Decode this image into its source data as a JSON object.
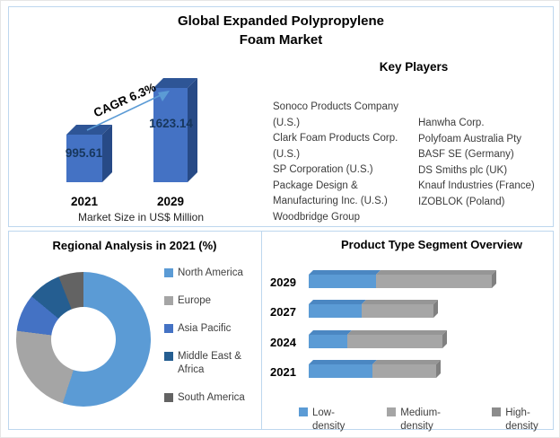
{
  "poster": {
    "title_line1": "Global Expanded Polypropylene",
    "title_line2": "Foam Market"
  },
  "market_chart": {
    "cagr_label": "CAGR 6.3%",
    "caption": "Market Size in US$ Million",
    "bars": [
      {
        "year": "2021",
        "value": "995.61"
      },
      {
        "year": "2029",
        "value": "1623.14"
      }
    ],
    "bar_color": "#4472C4",
    "arrow_color": "#5B9BD5"
  },
  "key_players": {
    "heading": "Key Players",
    "column_left": [
      "Sonoco Products Company (U.S.)",
      "Clark Foam Products Corp. (U.S.)",
      "SP Corporation (U.S.)",
      "Package Design & Manufacturing Inc. (U.S.)",
      "Woodbridge Group"
    ],
    "column_right": [
      "Hanwha Corp.",
      "Polyfoam Australia Pty",
      "BASF SE (Germany)",
      "DS Smiths plc (UK)",
      "Knauf Industries (France)",
      "IZOBLOK (Poland)"
    ]
  },
  "regional": {
    "title": "Regional Analysis in 2021 (%)",
    "legend": [
      {
        "label": "North America",
        "color": "#5B9BD5"
      },
      {
        "label": "Europe",
        "color": "#A5A5A5"
      },
      {
        "label": "Asia Pacific",
        "color": "#4472C4"
      },
      {
        "label": "Middle East & Africa",
        "color": "#255E91"
      },
      {
        "label": "South America",
        "color": "#636363"
      }
    ]
  },
  "product": {
    "title": "Product Type Segment Overview",
    "legend": [
      {
        "label": "Low-density",
        "color": "#5B9BD5"
      },
      {
        "label": "Medium-density",
        "color": "#A5A5A5"
      },
      {
        "label": "High-density",
        "color": "#8C8C8C"
      }
    ]
  },
  "chart_data": [
    {
      "type": "bar",
      "title": "Market Size in US$ Million",
      "categories": [
        "2021",
        "2029"
      ],
      "values": [
        995.61,
        1623.14
      ],
      "annotation": "CAGR 6.3%",
      "xlabel": "",
      "ylabel": "US$ Million",
      "legend_position": "none"
    },
    {
      "type": "pie",
      "title": "Regional Analysis in 2021 (%)",
      "labels": [
        "North America",
        "Europe",
        "Asia Pacific",
        "Middle East & Africa",
        "South America"
      ],
      "values": [
        55,
        22,
        9,
        8,
        6
      ],
      "colors": [
        "#5B9BD5",
        "#A5A5A5",
        "#4472C4",
        "#255E91",
        "#636363"
      ],
      "donut_hole": 0.48,
      "legend_position": "right",
      "note": "percentages estimated from slice angles; no data labels shown"
    },
    {
      "type": "bar",
      "orientation": "horizontal-stacked",
      "title": "Product Type Segment Overview",
      "categories": [
        "2029",
        "2027",
        "2024",
        "2021"
      ],
      "series": [
        {
          "name": "Low-density",
          "color": "#5B9BD5",
          "values": [
            37,
            29,
            21,
            35
          ]
        },
        {
          "name": "Medium-density",
          "color": "#A5A5A5",
          "values": [
            63,
            39,
            52,
            35
          ]
        },
        {
          "name": "High-density",
          "color": "#8C8C8C",
          "values": [
            2,
            2,
            2,
            2
          ]
        }
      ],
      "legend_position": "bottom",
      "note": "relative bar lengths estimated; no value axis shown"
    }
  ]
}
